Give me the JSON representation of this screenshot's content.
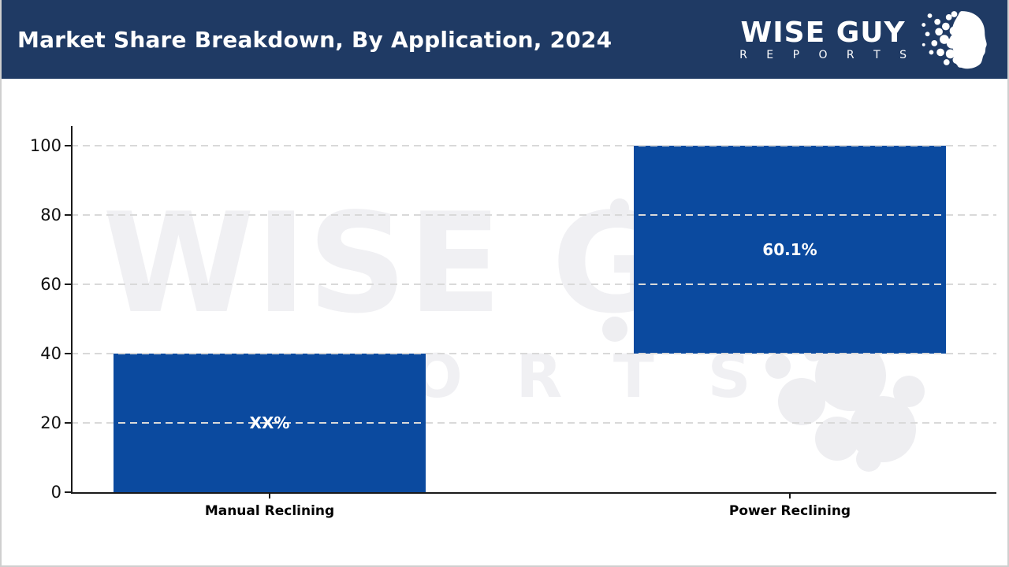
{
  "header": {
    "title": "Market Share Breakdown, By Application, 2024",
    "logo": {
      "name": "WISE GUY",
      "sub": "R E P O R T S"
    }
  },
  "chart_data": {
    "type": "bar",
    "title": "Market Share Breakdown, By Application, 2024",
    "categories": [
      "Manual Reclining",
      "Power Reclining"
    ],
    "bars": [
      {
        "category": "Manual Reclining",
        "base": 0,
        "top": 40,
        "label": "XX%"
      },
      {
        "category": "Power Reclining",
        "base": 40,
        "top": 100,
        "label": "60.1%"
      }
    ],
    "yticks": [
      "0",
      "20",
      "40",
      "60",
      "80",
      "100"
    ],
    "ylim": [
      0,
      106
    ],
    "xlabel": "",
    "ylabel": "",
    "grid": "horizontal-dashed",
    "legend": false
  },
  "watermark": {
    "line1": "WISE GUY",
    "line2": "REPORTS"
  },
  "colors": {
    "header_bg": "#1f3a64",
    "bar": "#0b4a9f",
    "grid": "#d9d9d9",
    "axis": "#1a1a1a",
    "watermark": "#f0f0f3",
    "page_border": "#cfcfcf"
  }
}
